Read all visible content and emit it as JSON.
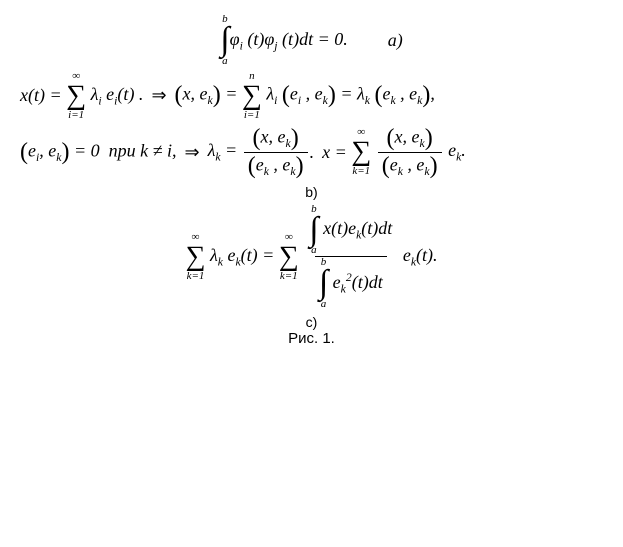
{
  "eq_a": {
    "int_upper": "b",
    "int_lower": "a",
    "body": "φ",
    "sub_i": "i",
    "sub_j": "j",
    "var": "t",
    "rhs": "= 0.",
    "label": "a)"
  },
  "eq_b1": {
    "lhs_x": "x",
    "var": "t",
    "sum_upper": "∞",
    "sum_lower": "i=1",
    "lambda": "λ",
    "sub_i": "i",
    "e": "e",
    "arrow": "⇒",
    "sub_k": "k",
    "sum2_upper": "n",
    "sum2_lower": "i=1"
  },
  "eq_b2": {
    "e": "e",
    "sub_i": "i",
    "sub_k": "k",
    "zero": "= 0",
    "cond": "npu k ≠ i,",
    "arrow": "⇒",
    "lambda": "λ",
    "x": "x",
    "sum_upper": "∞",
    "sum_lower": "k=1"
  },
  "label_b": "b)",
  "eq_c": {
    "sum_upper": "∞",
    "sum_lower": "k=1",
    "lambda": "λ",
    "sub_k": "k",
    "e": "e",
    "var": "t",
    "int_upper": "b",
    "int_lower": "a",
    "x": "x",
    "sq": "2"
  },
  "label_c": "c)",
  "caption": "Рис. 1."
}
